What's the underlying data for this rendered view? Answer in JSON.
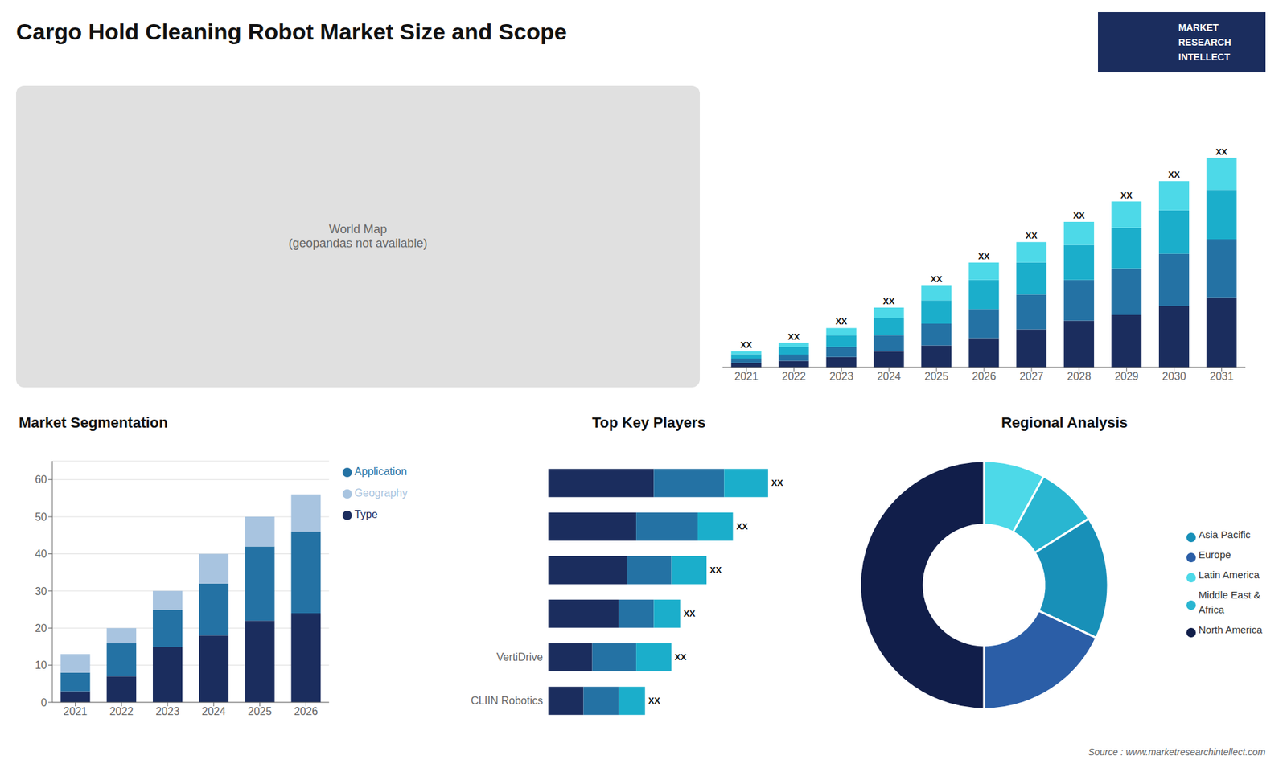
{
  "title": "Cargo Hold Cleaning Robot Market Size and Scope",
  "annotations": [
    "World Map\n(geopandas not available)",
    "MARKET\nRESEARCH\nINTELLECT",
    "Source : www.marketresearchintellect.com"
  ],
  "chart_data": [
    {
      "type": "bar",
      "stacked": true,
      "categories": [
        "2021",
        "2022",
        "2023",
        "2024",
        "2025",
        "2026",
        "2027",
        "2028",
        "2029",
        "2030",
        "2031"
      ],
      "series": [
        {
          "color": "#1b2d5e",
          "values": [
            1.5,
            2.2,
            3.5,
            5.5,
            7.5,
            10,
            13,
            16,
            18,
            21,
            24
          ]
        },
        {
          "color": "#2472a4",
          "values": [
            1.5,
            2.2,
            3.5,
            5.5,
            7.5,
            10,
            12,
            14,
            16,
            18,
            20
          ]
        },
        {
          "color": "#1baecb",
          "values": [
            1.5,
            2.5,
            4,
            6,
            8,
            10,
            11,
            12,
            14,
            15,
            17
          ]
        },
        {
          "color": "#4dd9e8",
          "values": [
            1,
            1.5,
            2.5,
            3.5,
            5,
            6,
            7,
            8,
            9,
            10,
            11
          ]
        }
      ],
      "total_labels": [
        "XX",
        "XX",
        "XX",
        "XX",
        "XX",
        "XX",
        "XX",
        "XX",
        "XX",
        "XX",
        "XX"
      ],
      "ylim": [
        0,
        92.16
      ],
      "tick_labels": "x",
      "grid": false
    },
    {
      "type": "bar",
      "title": "Market Segmentation",
      "stacked": true,
      "categories": [
        "2021",
        "2022",
        "2023",
        "2024",
        "2025",
        "2026"
      ],
      "series": [
        {
          "name": "Type",
          "color": "#1b2d5e",
          "values": [
            3,
            7,
            15,
            18,
            22,
            24
          ]
        },
        {
          "name": "Application",
          "color": "#2472a4",
          "values": [
            5,
            9,
            10,
            14,
            20,
            22
          ]
        },
        {
          "name": "Geography",
          "color": "#a8c4e0",
          "values": [
            5,
            4,
            5,
            8,
            8,
            10
          ]
        }
      ],
      "ylim": [
        0,
        65
      ],
      "yticks": [
        0,
        10,
        20,
        30,
        40,
        50,
        60
      ],
      "grid": true,
      "legend": "right"
    },
    {
      "type": "bar",
      "title": "Top Key Players",
      "orientation": "horizontal",
      "stacked": true,
      "categories": [
        null,
        null,
        null,
        null,
        "VertiDrive",
        "CLIIN Robotics"
      ],
      "series": [
        {
          "color": "#1b2d5e",
          "values": [
            12,
            10,
            9,
            8,
            5,
            4
          ]
        },
        {
          "color": "#2472a4",
          "values": [
            8,
            7,
            5,
            4,
            5,
            4
          ]
        },
        {
          "color": "#1baecb",
          "values": [
            5,
            4,
            4,
            3,
            4,
            3
          ]
        }
      ],
      "total_labels": [
        "XX",
        "XX",
        "XX",
        "XX",
        "XX",
        "XX"
      ],
      "xlim": [
        0,
        30.5
      ],
      "tick_labels": "y",
      "grid": false
    },
    {
      "type": "pie",
      "title": "Regional Analysis",
      "categories": [
        "Latin America",
        "Middle East &\nAfrica",
        "Asia Pacific",
        "Europe",
        "North America"
      ],
      "values": [
        8,
        8,
        16,
        18,
        50
      ],
      "colors": [
        "#4dd9e8",
        "#29b6d1",
        "#1890b8",
        "#2b5ea7",
        "#111e4a"
      ],
      "legend": "right"
    }
  ]
}
